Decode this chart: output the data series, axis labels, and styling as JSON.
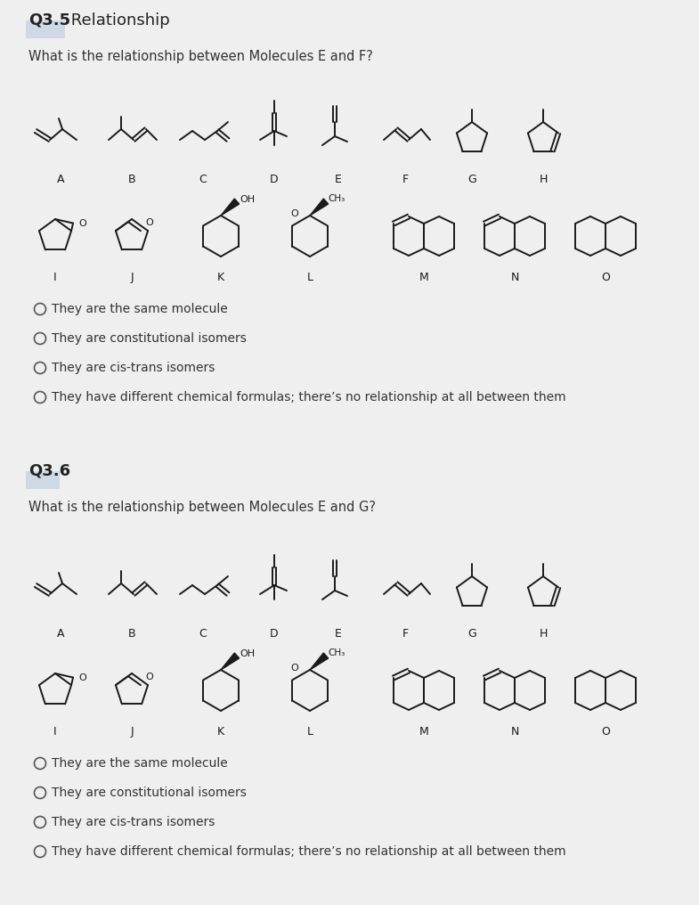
{
  "bg_color": "#efefef",
  "title1_bold": "Q3.5",
  "title1_normal": " Relationship",
  "question1": "What is the relationship between Molecules E and F?",
  "title2_bold": "Q3.6",
  "question2": "What is the relationship between Molecules E and G?",
  "options": [
    "They are the same molecule",
    "They are constitutional isomers",
    "They are cis-trans isomers",
    "They have different chemical formulas; there’s no relationship at all between them"
  ],
  "accent_color": "#b0c4de",
  "text_color": "#333333",
  "line_color": "#1a1a1a",
  "lw": 1.4
}
